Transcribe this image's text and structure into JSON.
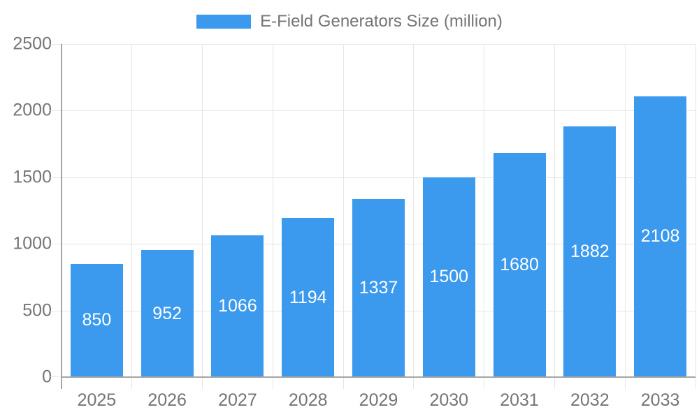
{
  "chart_data": {
    "type": "bar",
    "title": "E-Field Generators Size (million)",
    "legend_entries": [
      "E-Field Generators Size (million)"
    ],
    "legend_position": "top",
    "categories": [
      "2025",
      "2026",
      "2027",
      "2028",
      "2029",
      "2030",
      "2031",
      "2032",
      "2033"
    ],
    "series": [
      {
        "name": "E-Field Generators Size (million)",
        "values": [
          850,
          952,
          1066,
          1194,
          1337,
          1500,
          1680,
          1882,
          2108
        ]
      }
    ],
    "data_labels": [
      "850",
      "952",
      "1066",
      "1194",
      "1337",
      "1500",
      "1680",
      "1882",
      "2108"
    ],
    "xlabel": "",
    "ylabel": "",
    "ylim": [
      0,
      2500
    ],
    "yticks": [
      0,
      500,
      1000,
      1500,
      2000,
      2500
    ],
    "grid": true,
    "colors": {
      "bar": "#3b99ee",
      "bar_value_label": "#ffffff",
      "axis_text": "#757575",
      "legend_text": "#757575",
      "gridline": "#e6e6e6",
      "axis_line": "#a6a6a6"
    }
  }
}
